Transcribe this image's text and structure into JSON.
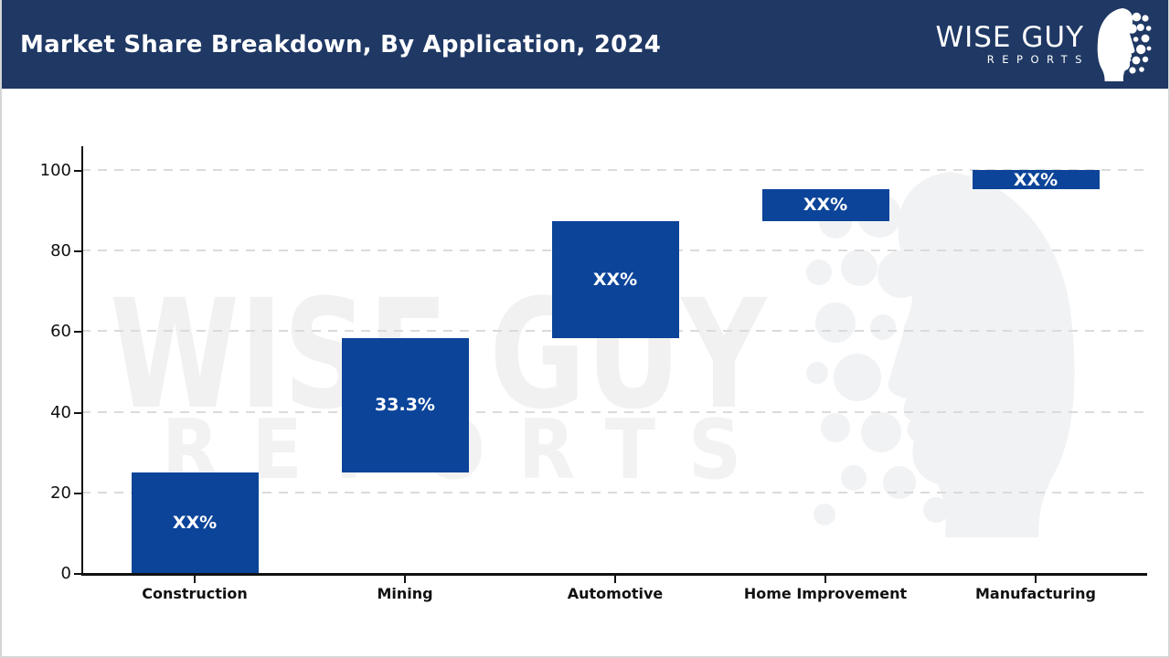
{
  "header": {
    "title": "Market Share Breakdown, By Application, 2024",
    "logo": {
      "line1": "WISE GUY",
      "line2": "REPORTS",
      "icon": "dotted-head-profile-icon"
    }
  },
  "watermark": {
    "line1": "WISE GUY",
    "line2": "REPORTS",
    "head_icon": "dotted-head-profile-watermark"
  },
  "chart_data": {
    "type": "bar",
    "subtype": "waterfall-floating-bars",
    "title": "Market Share Breakdown, By Application, 2024",
    "categories": [
      "Construction",
      "Mining",
      "Automotive",
      "Home Improvement",
      "Manufacturing"
    ],
    "bars": [
      {
        "category": "Construction",
        "base": 0,
        "top": 25,
        "label": "XX%"
      },
      {
        "category": "Mining",
        "base": 25,
        "top": 58.3,
        "label": "33.3%"
      },
      {
        "category": "Automotive",
        "base": 58.3,
        "top": 87.4,
        "label": "XX%"
      },
      {
        "category": "Home Improvement",
        "base": 87.4,
        "top": 95.2,
        "label": "XX%"
      },
      {
        "category": "Manufacturing",
        "base": 95.2,
        "top": 100,
        "label": "XX%"
      }
    ],
    "y_ticks": [
      0,
      20,
      40,
      60,
      80,
      100
    ],
    "ylim": [
      0,
      105
    ],
    "xlabel": "",
    "ylabel": "",
    "grid": "horizontal-dashed",
    "legend": "none",
    "bar_color": "#0b4499",
    "bar_label_color": "#ffffff",
    "axis_color": "#111111",
    "header_color": "#1f3864"
  }
}
